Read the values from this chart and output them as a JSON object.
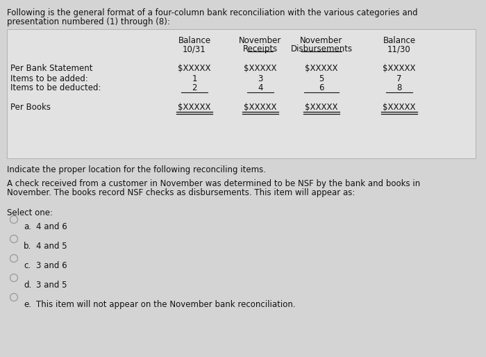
{
  "bg_color": "#d4d4d4",
  "title_line1": "Following is the general format of a four-column bank reconciliation with the various categories and",
  "title_line2": "presentation numbered (1) through (8):",
  "col_headers": [
    [
      "Balance",
      "10/31"
    ],
    [
      "November",
      "Receipts"
    ],
    [
      "November",
      "Disbursements"
    ],
    [
      "Balance",
      "11/30"
    ]
  ],
  "underline_headers": [
    1,
    2
  ],
  "row_labels": [
    "Per Bank Statement",
    "Items to be added:",
    "Items to be deducted:",
    "Per Books"
  ],
  "row_data": [
    [
      "$XXXXX",
      "$XXXXX",
      "$XXXXX",
      "$XXXXX"
    ],
    [
      "1",
      "3",
      "5",
      "7"
    ],
    [
      "2",
      "4",
      "6",
      "8"
    ],
    [
      "$XXXXX",
      "$XXXXX",
      "$XXXXX",
      "$XXXXX"
    ]
  ],
  "question_text": "Indicate the proper location for the following reconciling items.",
  "scenario_text": "A check received from a customer in November was determined to be NSF by the bank and books in\nNovember. The books record NSF checks as disbursements. This item will appear as:",
  "select_label": "Select one:",
  "options": [
    [
      "a.",
      "4 and 6"
    ],
    [
      "b.",
      "4 and 5"
    ],
    [
      "c.",
      "3 and 6"
    ],
    [
      "d.",
      "3 and 5"
    ],
    [
      "e.",
      "This item will not appear on the November bank reconciliation."
    ]
  ],
  "font_size": 8.5,
  "table_bg": "#e2e2e2"
}
